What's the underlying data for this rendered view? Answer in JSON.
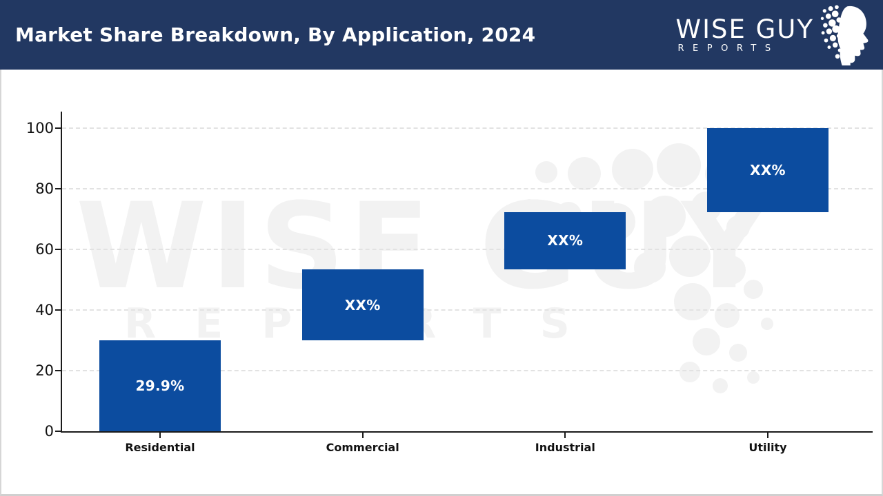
{
  "header": {
    "title": "Market Share Breakdown, By Application, 2024",
    "logo": {
      "line1": "WISE GUY",
      "line2": "REPORTS"
    }
  },
  "watermark": {
    "line1": "WISE GUY",
    "line2": "REPORTS"
  },
  "colors": {
    "header_bg": "#223862",
    "bar": "#0c4c9f",
    "grid": "#e2e2e2",
    "axis": "#1a1a1a",
    "bar_label": "#ffffff",
    "watermark": "#f2f2f2"
  },
  "chart_data": {
    "type": "bar",
    "subtype": "waterfall",
    "title": "Market Share Breakdown, By Application, 2024",
    "xlabel": "",
    "ylabel": "",
    "categories": [
      "Residential",
      "Commercial",
      "Industrial",
      "Utility"
    ],
    "segments": [
      {
        "category": "Residential",
        "start": 0,
        "end": 29.9,
        "label": "29.9%"
      },
      {
        "category": "Commercial",
        "start": 29.9,
        "end": 53.4,
        "label": "XX%"
      },
      {
        "category": "Industrial",
        "start": 53.4,
        "end": 72.3,
        "label": "XX%"
      },
      {
        "category": "Utility",
        "start": 72.3,
        "end": 100,
        "label": "XX%"
      }
    ],
    "yticks": [
      0,
      20,
      40,
      60,
      80,
      100
    ],
    "ylim": [
      0,
      105
    ],
    "grid": "horizontal-dashed",
    "legend": "none"
  }
}
